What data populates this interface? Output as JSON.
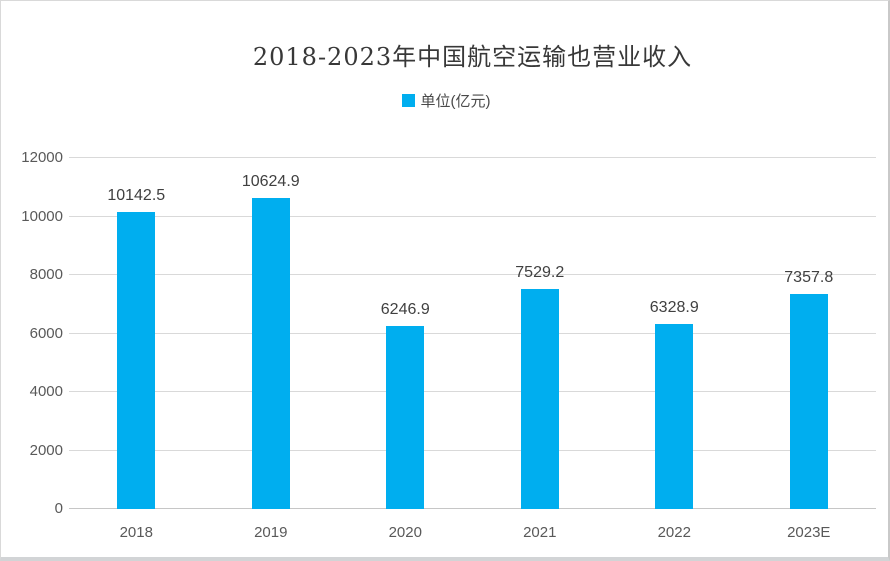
{
  "chart_data": {
    "type": "bar",
    "title": "2018-2023年中国航空运输也营业收入",
    "legend": {
      "label": "单位(亿元)",
      "position": "top-center"
    },
    "categories": [
      "2018",
      "2019",
      "2020",
      "2021",
      "2022",
      "2023E"
    ],
    "values": [
      10142.5,
      10624.9,
      6246.9,
      7529.2,
      6328.9,
      7357.8
    ],
    "value_labels": [
      "10142.5",
      "10624.9",
      "6246.9",
      "7529.2",
      "6328.9",
      "7357.8"
    ],
    "xlabel": "",
    "ylabel": "",
    "ylim": [
      0,
      12000
    ],
    "yticks": [
      0,
      2000,
      4000,
      6000,
      8000,
      10000,
      12000
    ],
    "ytick_labels": [
      "0",
      "2000",
      "4000",
      "6000",
      "8000",
      "10000",
      "12000"
    ],
    "grid": "horizontal",
    "bar_color": "#00aeef",
    "gridline_color": "#d9d9d9",
    "label_color": "#595959",
    "title_color": "#383838"
  }
}
